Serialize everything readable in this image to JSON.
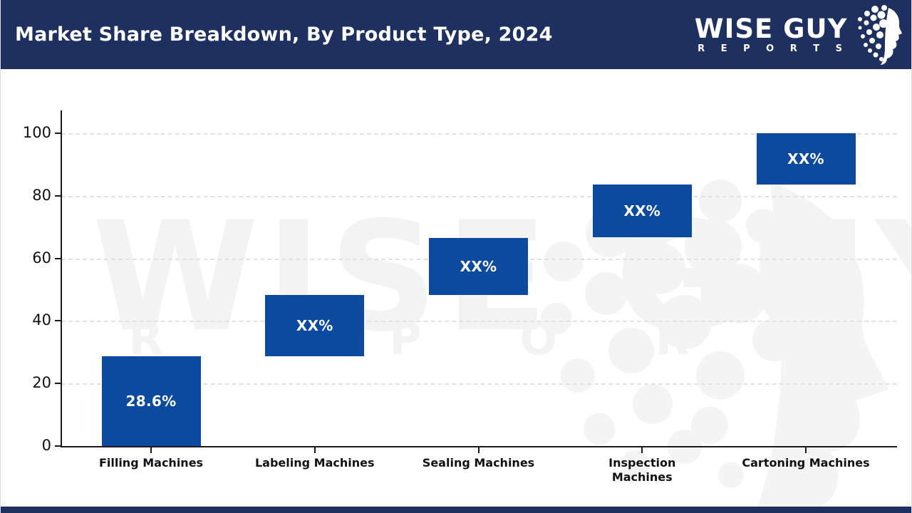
{
  "header": {
    "title": "Market Share Breakdown, By Product Type, 2024",
    "bg_color": "#1e3060",
    "logo": {
      "line1": "WISE GUY",
      "line2": "R E P O R T S"
    }
  },
  "watermark": {
    "line1": "WISE GUY",
    "line2": "R E P O R T S"
  },
  "footer": {
    "bg_color": "#1e3060"
  },
  "chart_data": {
    "type": "bar",
    "subtype": "waterfall",
    "title": "Market Share Breakdown, By Product Type, 2024",
    "xlabel": "",
    "ylabel": "",
    "categories": [
      "Filling Machines",
      "Labeling Machines",
      "Sealing Machines",
      "Inspection Machines",
      "Cartoning Machines"
    ],
    "tick_display": [
      "Filling Machines",
      "Labeling Machines",
      "Sealing Machines",
      "Inspection\nMachines",
      "Cartoning Machines"
    ],
    "segments": [
      {
        "category": "Filling Machines",
        "start": 0,
        "end": 28.6,
        "label": "28.6%"
      },
      {
        "category": "Labeling Machines",
        "start": 28.6,
        "end": 48.2,
        "label": "XX%"
      },
      {
        "category": "Sealing Machines",
        "start": 48.3,
        "end": 66.6,
        "label": "XX%"
      },
      {
        "category": "Inspection Machines",
        "start": 66.8,
        "end": 83.5,
        "label": "XX%"
      },
      {
        "category": "Cartoning Machines",
        "start": 83.6,
        "end": 99.9,
        "label": "XX%"
      }
    ],
    "yticks": [
      0,
      20,
      40,
      60,
      80,
      100
    ],
    "ylim": [
      0,
      107
    ],
    "grid": "horizontal dashed",
    "legend": "none",
    "bar_color": "#0b4a9f",
    "bar_label_color": "#ffffff",
    "axis_color": "#1a1a1a",
    "gridline_color": "#e2e2e2"
  }
}
